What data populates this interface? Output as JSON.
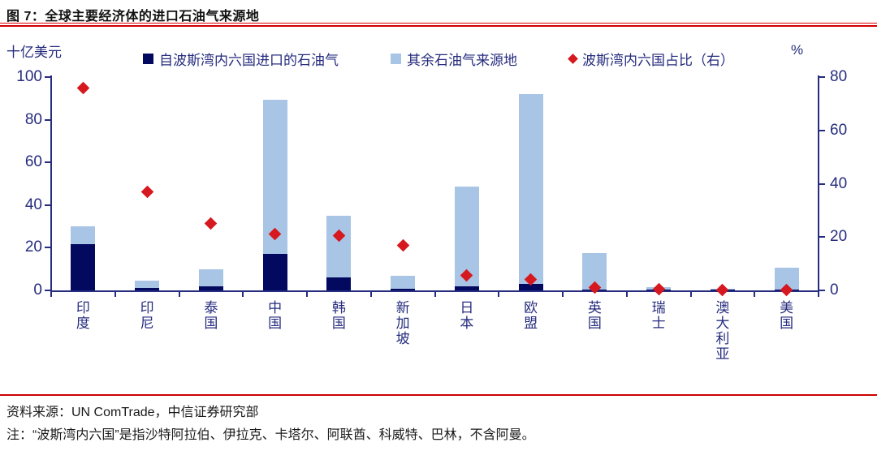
{
  "header": {
    "title": "图 7：全球主要经济体的进口石油气来源地"
  },
  "footer": {
    "source": "资料来源：UN ComTrade，中信证券研究部",
    "note": "注：“波斯湾内六国”是指沙特阿拉伯、伊拉克、卡塔尔、阿联酋、科威特、巴林，不含阿曼。"
  },
  "chart_data": {
    "type": "bar",
    "stacked": true,
    "title": "全球主要经济体的进口石油气来源地",
    "legend_position": "top",
    "grid": false,
    "categories": [
      "印度",
      "印尼",
      "泰国",
      "中国",
      "韩国",
      "新加坡",
      "日本",
      "欧盟",
      "英国",
      "瑞士",
      "澳大利亚",
      "美国"
    ],
    "left_axis": {
      "label": "十亿美元",
      "min": 0,
      "max": 100,
      "ticks": [
        0,
        20,
        40,
        60,
        80,
        100
      ]
    },
    "right_axis": {
      "label": "%",
      "min": 0,
      "max": 80,
      "ticks": [
        0,
        20,
        40,
        60,
        80
      ]
    },
    "series": [
      {
        "name": "自波斯湾内六国进口的石油气",
        "type": "bar",
        "axis": "left",
        "color": "#03095f",
        "values": [
          21.5,
          1,
          2,
          17,
          6,
          0.7,
          2,
          3,
          0.5,
          0.2,
          0.2,
          0.3
        ]
      },
      {
        "name": "其余石油气来源地",
        "type": "bar",
        "axis": "left",
        "color": "#a8c5e6",
        "values": [
          8.5,
          3.5,
          8,
          72.5,
          29,
          6,
          46.5,
          89,
          17,
          1.5,
          0.5,
          10.5
        ]
      },
      {
        "name": "波斯湾内六国占比（右）",
        "type": "scatter",
        "marker": "diamond",
        "axis": "right",
        "color": "#d6181f",
        "values": [
          76,
          37,
          25,
          21,
          20.5,
          17,
          5.5,
          4,
          1,
          0.5,
          0.3,
          0.3
        ]
      }
    ]
  },
  "colors": {
    "axis": "#262c7e",
    "bar_gulf": "#03095f",
    "bar_other": "#a8c5e6",
    "marker": "#d6181f",
    "rule": "#cf0000"
  }
}
